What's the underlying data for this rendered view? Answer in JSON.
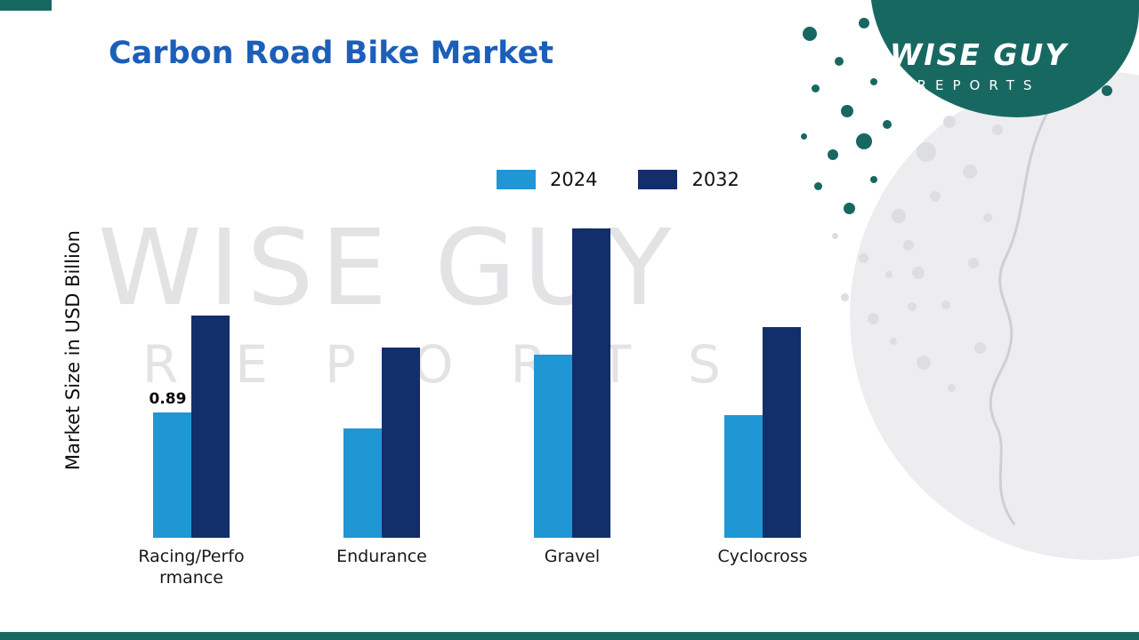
{
  "page": {
    "title": "Carbon Road Bike Market",
    "title_color": "#1c5fb8",
    "accent_teal": "#186862",
    "watermark_color": "#e3e3e6"
  },
  "logo": {
    "line1": "WISE GUY",
    "line2": "REPORTS"
  },
  "watermark": {
    "line1": "WISE GUY",
    "line2": "REPORTS"
  },
  "chart_data": {
    "type": "bar",
    "title": "Carbon Road Bike Market",
    "xlabel": "",
    "ylabel": "Market Size in USD Billion",
    "ylim": [
      0,
      2.4
    ],
    "grid": false,
    "legend_position": "top",
    "categories": [
      "Racing/Performance",
      "Endurance",
      "Gravel",
      "Cyclocross"
    ],
    "series": [
      {
        "name": "2024",
        "color": "#1f97d4",
        "values": [
          0.89,
          0.78,
          1.3,
          0.87
        ]
      },
      {
        "name": "2032",
        "color": "#122e6b",
        "values": [
          1.58,
          1.35,
          2.2,
          1.5
        ]
      }
    ],
    "annotations": [
      {
        "series": 0,
        "category": 0,
        "text": "0.89"
      }
    ]
  }
}
